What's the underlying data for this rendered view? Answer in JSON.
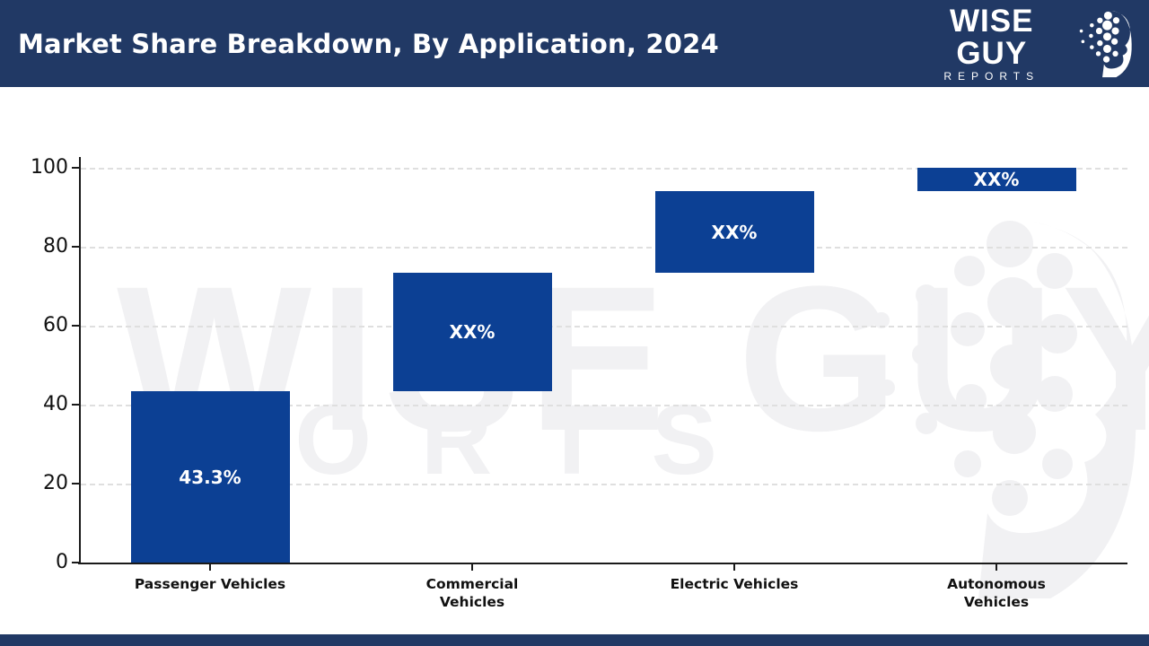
{
  "header": {
    "title": "Market Share Breakdown, By Application, 2024",
    "logo_line1": "WISE GUY",
    "logo_line2": "REPORTS"
  },
  "watermark": {
    "line1": "WISE GUY",
    "line2": "PORTS"
  },
  "colors": {
    "header_bg": "#213965",
    "footer_bg": "#213965",
    "bar_blue": "#0c4094",
    "gridline": "#dfdfdf",
    "watermark_gray": "#f1f1f3",
    "axis_text": "#111111"
  },
  "chart_data": {
    "type": "bar",
    "subtype": "waterfall",
    "title": "Market Share Breakdown, By Application, 2024",
    "xlabel": "",
    "ylabel": "",
    "ylim": [
      0,
      105
    ],
    "grid": "horizontal-dashed",
    "legend": "none",
    "yticks": [
      0,
      20,
      40,
      60,
      80,
      100
    ],
    "categories": [
      "Passenger Vehicles",
      "Commercial Vehicles",
      "Electric Vehicles",
      "Autonomous Vehicles"
    ],
    "category_lines": [
      [
        "Passenger Vehicles"
      ],
      [
        "Commercial",
        "Vehicles"
      ],
      [
        "Electric Vehicles"
      ],
      [
        "Autonomous",
        "Vehicles"
      ]
    ],
    "segments": [
      {
        "category": "Passenger Vehicles",
        "start": 0,
        "end": 43.3,
        "label": "43.3%"
      },
      {
        "category": "Commercial Vehicles",
        "start": 43.3,
        "end": 73.3,
        "label": "XX%"
      },
      {
        "category": "Electric Vehicles",
        "start": 73.3,
        "end": 94.0,
        "label": "XX%"
      },
      {
        "category": "Autonomous Vehicles",
        "start": 94.0,
        "end": 100,
        "label": "XX%"
      }
    ],
    "bar_color": "#0c4094",
    "value_label_color": "#ffffff"
  }
}
